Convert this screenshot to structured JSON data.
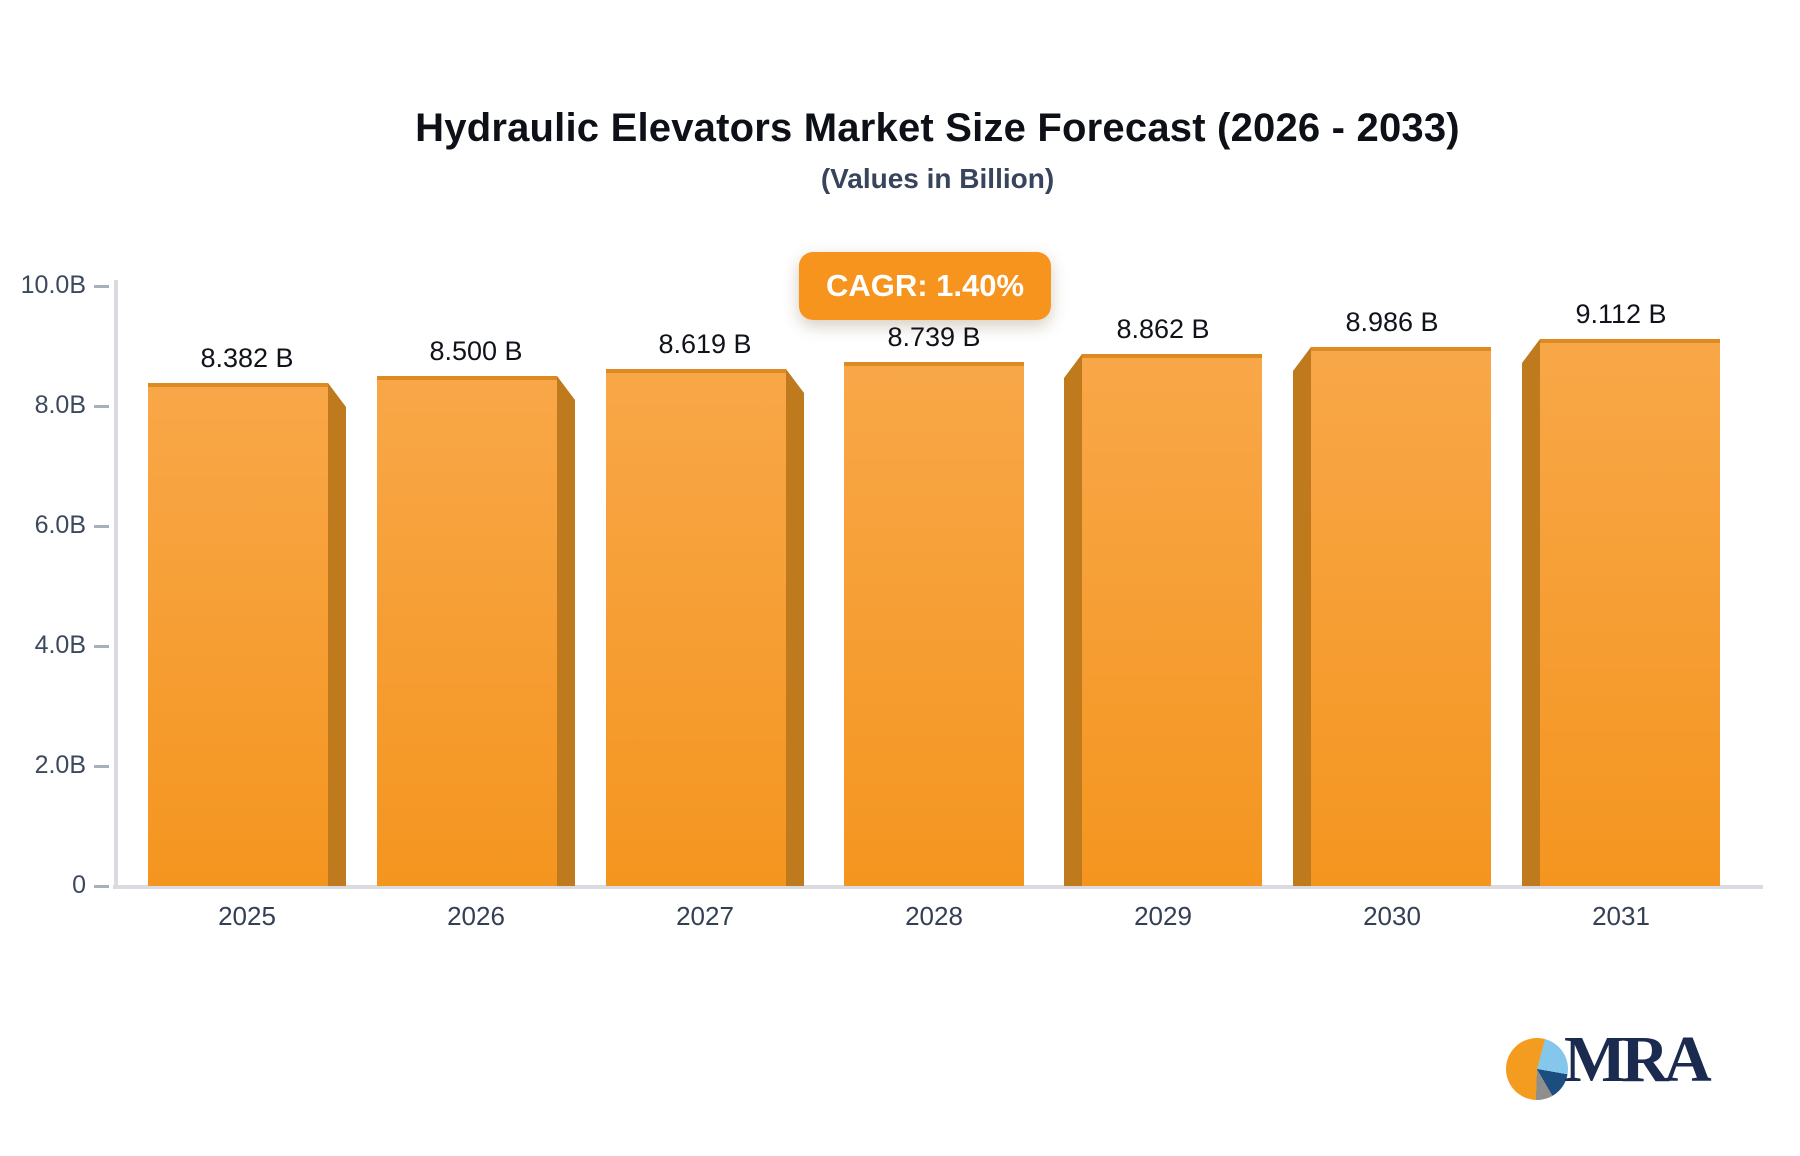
{
  "header": {
    "title": "Hydraulic Elevators Market Size Forecast (2026 - 2033)",
    "subtitle": "(Values in Billion)"
  },
  "cagr_badge": {
    "label": "CAGR: 1.40%",
    "background_color": "#F7941E",
    "text_color": "#FFFFFF"
  },
  "chart_data": {
    "type": "bar",
    "title": "Hydraulic Elevators Market Size Forecast (2026 - 2033)",
    "subtitle": "(Values in Billion)",
    "xlabel": "",
    "ylabel": "",
    "categories": [
      "2025",
      "2026",
      "2027",
      "2028",
      "2029",
      "2030",
      "2031"
    ],
    "values": [
      8.382,
      8.5,
      8.619,
      8.739,
      8.862,
      8.986,
      9.112
    ],
    "value_labels": [
      "8.382 B",
      "8.500 B",
      "8.619 B",
      "8.739 B",
      "8.862 B",
      "8.986 B",
      "9.112 B"
    ],
    "bars": [
      {
        "category": "2025",
        "value": 8.382,
        "label": "8.382 B",
        "side": "right"
      },
      {
        "category": "2026",
        "value": 8.5,
        "label": "8.500 B",
        "side": "right"
      },
      {
        "category": "2027",
        "value": 8.619,
        "label": "8.619 B",
        "side": "right"
      },
      {
        "category": "2028",
        "value": 8.739,
        "label": "8.739 B",
        "side": "none"
      },
      {
        "category": "2029",
        "value": 8.862,
        "label": "8.862 B",
        "side": "left"
      },
      {
        "category": "2030",
        "value": 8.986,
        "label": "8.986 B",
        "side": "left"
      },
      {
        "category": "2031",
        "value": 9.112,
        "label": "9.112 B",
        "side": "left"
      }
    ],
    "cagr": "1.40%",
    "ylim": [
      0,
      10
    ],
    "ytick_values": [
      10,
      8,
      6,
      4,
      2,
      0
    ],
    "ytick_labels": [
      "10.0B",
      "8.0B",
      "6.0B",
      "4.0B",
      "2.0B",
      "0"
    ],
    "grid": false,
    "legend": false,
    "colors": {
      "bar_face_top": "#F8A748",
      "bar_face_bottom": "#F4951F",
      "bar_top_edge": "#DD8A22",
      "bar_side": "#BE7A1D",
      "axis_line": "#D9DBE0",
      "tick_dash": "#A8B0BB",
      "ytick_text": "#3D4A5D",
      "xtick_text": "#333F54",
      "value_text": "#10131A"
    }
  },
  "logo": {
    "text": "MRA",
    "text_color": "#1A2B4F",
    "pie_segments": [
      {
        "color": "#F39C1F",
        "start": 0,
        "end": 15
      },
      {
        "color": "#85C7EA",
        "start": 15,
        "end": 100
      },
      {
        "color": "#1B4D7E",
        "start": 100,
        "end": 150
      },
      {
        "color": "#8E8E8E",
        "start": 150,
        "end": 182
      },
      {
        "color": "#F39C1F",
        "start": 182,
        "end": 360
      }
    ]
  }
}
